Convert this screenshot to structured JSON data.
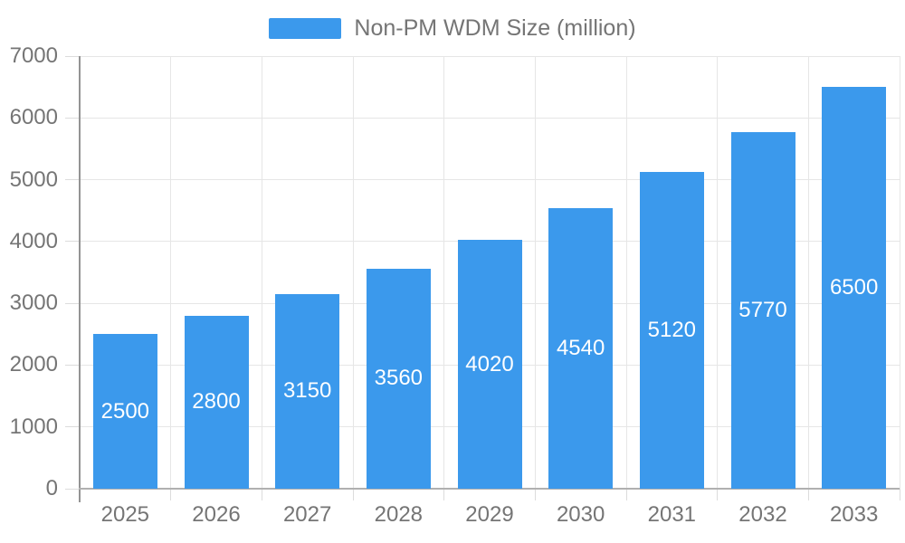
{
  "legend": {
    "label": "Non-PM WDM Size (million)"
  },
  "chart_data": {
    "type": "bar",
    "title": "Non-PM WDM Size (million)",
    "series_name": "Non-PM WDM Size (million)",
    "categories": [
      "2025",
      "2026",
      "2027",
      "2028",
      "2029",
      "2030",
      "2031",
      "2032",
      "2033"
    ],
    "values": [
      2500,
      2800,
      3150,
      3560,
      4020,
      4540,
      5120,
      5770,
      6500
    ],
    "value_labels": [
      "2500",
      "2800",
      "3150",
      "3560",
      "4020",
      "4540",
      "5120",
      "5770",
      "6500"
    ],
    "xlabel": "",
    "ylabel": "",
    "ylim": [
      0,
      7000
    ],
    "yticks": [
      0,
      1000,
      2000,
      3000,
      4000,
      5000,
      6000,
      7000
    ],
    "ytick_labels": [
      "0",
      "1000",
      "2000",
      "3000",
      "4000",
      "5000",
      "6000",
      "7000"
    ],
    "grid": true,
    "legend_position": "top",
    "bar_color": "#3B99EC",
    "value_label_color": "#ffffff",
    "axis_text_color": "#757575",
    "grid_color": "#e6e6e6",
    "y_axis_line_color": "#949494",
    "x_axis_line_color": "#b0b0b0",
    "background_color": "#ffffff"
  }
}
